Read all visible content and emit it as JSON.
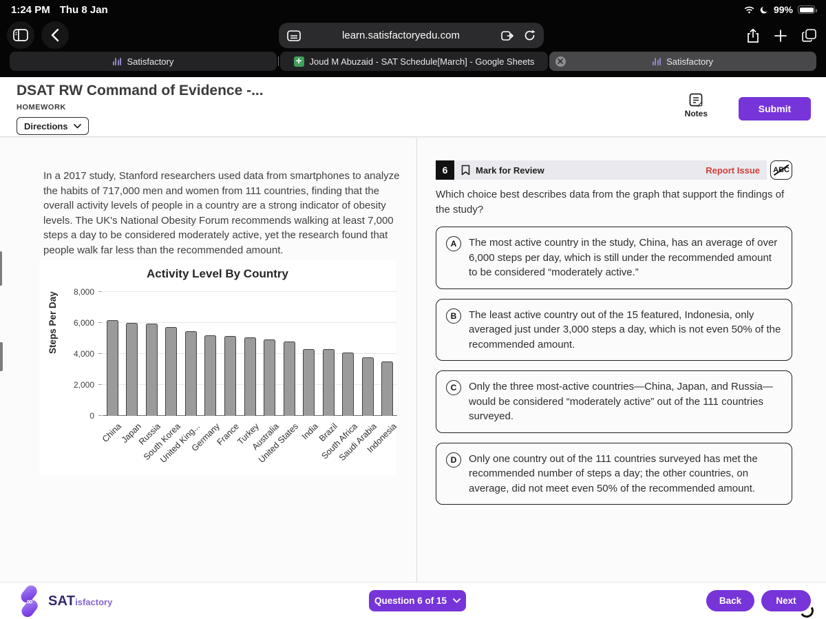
{
  "colors": {
    "accent": "#7634d9",
    "report_issue": "#cf4037",
    "bar_fill": "#9b9b9b",
    "bar_border": "#434343",
    "tab_active": "#48484a",
    "question_bar_bg": "#e9e9ee"
  },
  "status_bar": {
    "time": "1:24 PM",
    "date": "Thu 8 Jan",
    "battery": "99%"
  },
  "browser": {
    "url": "learn.satisfactoryedu.com",
    "tabs": [
      {
        "label": "Satisfactory"
      },
      {
        "label": "Joud M Abuzaid - SAT Schedule[March] - Google Sheets"
      },
      {
        "label": "Satisfactory"
      }
    ]
  },
  "header": {
    "title": "DSAT RW Command of Evidence -...",
    "subtitle": "HOMEWORK",
    "directions_label": "Directions",
    "notes_label": "Notes",
    "submit_label": "Submit"
  },
  "passage": {
    "text": "In a 2017 study, Stanford researchers used data from smartphones to analyze the habits of 717,000 men and women from 111 countries, finding that the overall activity levels of people in a country are a strong indicator of obesity levels. The UK's National Obesity Forum recommends walking at least 7,000 steps a day to be considered moderately active, yet the research found that people walk far less than the recommended amount."
  },
  "chart_data": {
    "type": "bar",
    "title": "Activity Level By Country",
    "xlabel": "",
    "ylabel": "Steps Per Day",
    "categories": [
      "China",
      "Japan",
      "Russia",
      "South Korea",
      "United King...",
      "Germany",
      "France",
      "Turkey",
      "Australia",
      "United States",
      "India",
      "Brazil",
      "South Africa",
      "Saudi Arabia",
      "Indonesia"
    ],
    "values": [
      6200,
      6000,
      5950,
      5750,
      5450,
      5200,
      5150,
      5050,
      4950,
      4800,
      4300,
      4300,
      4100,
      3800,
      3500
    ],
    "ylim": [
      0,
      8000
    ],
    "yticks": [
      0,
      2000,
      4000,
      6000,
      8000
    ],
    "grid": true,
    "legend": false
  },
  "question": {
    "number": "6",
    "mark_for_review": "Mark for Review",
    "report_issue": "Report Issue",
    "eliminator_label": "ABC",
    "prompt": "Which choice best describes data from the graph that support the findings of the study?",
    "choices": [
      {
        "letter": "A",
        "text": "The most active country in the study, China, has an average of over 6,000 steps per day, which is still under the recommended amount to be considered “moderately active.”"
      },
      {
        "letter": "B",
        "text": "The least active country out of the 15 featured, Indonesia, only averaged just under 3,000 steps a day, which is not even 50% of the recommended amount."
      },
      {
        "letter": "C",
        "text": "Only the three most-active countries—China, Japan, and Russia—would be considered “moderately active” out of the 111 countries surveyed."
      },
      {
        "letter": "D",
        "text": "Only one country out of the 111 countries surveyed has met the recommended number of steps a day; the other countries, on average, did not meet even 50% of the recommended amount."
      }
    ]
  },
  "footer": {
    "brand_bold": "SAT",
    "brand_light": "isfactory",
    "question_nav_label": "Question 6 of 15",
    "back_label": "Back",
    "next_label": "Next"
  }
}
